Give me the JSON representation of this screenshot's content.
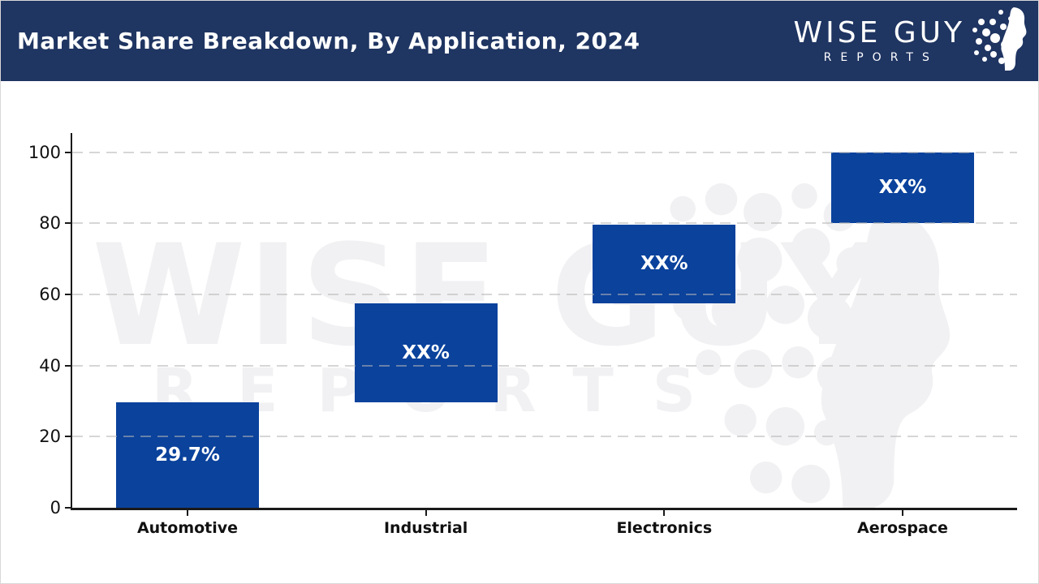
{
  "header": {
    "title": "Market Share Breakdown, By Application, 2024",
    "logo": {
      "name_line": "WISE GUY",
      "sub_line": "REPORTS"
    }
  },
  "watermark": {
    "name_line": "WISE GUY",
    "sub_line": "REPORTS"
  },
  "colors": {
    "header_bg": "#1f3562",
    "bar": "#0a429c",
    "grid": "#b5b5b5",
    "axis": "#1a1a1a",
    "text": "#111111",
    "bar_label": "#ffffff",
    "watermark": "#f1f1f3"
  },
  "chart_data": {
    "type": "bar",
    "variant": "waterfall",
    "title": "Market Share Breakdown, By Application, 2024",
    "xlabel": "",
    "ylabel": "",
    "categories": [
      "Automotive",
      "Industrial",
      "Electronics",
      "Aerospace"
    ],
    "segments": [
      {
        "category": "Automotive",
        "start": 0,
        "end": 29.7,
        "label": "29.7%"
      },
      {
        "category": "Industrial",
        "start": 29.7,
        "end": 57.5,
        "label": "XX%"
      },
      {
        "category": "Electronics",
        "start": 57.5,
        "end": 79.7,
        "label": "XX%"
      },
      {
        "category": "Aerospace",
        "start": 80,
        "end": 100,
        "label": "XX%"
      }
    ],
    "bar_value_labels": [
      "29.7%",
      "XX%",
      "XX%",
      "XX%"
    ],
    "yticks": [
      0,
      20,
      40,
      60,
      80,
      100
    ],
    "ylim": [
      0,
      105
    ],
    "grid": "horizontal-dashed",
    "legend": "none"
  }
}
